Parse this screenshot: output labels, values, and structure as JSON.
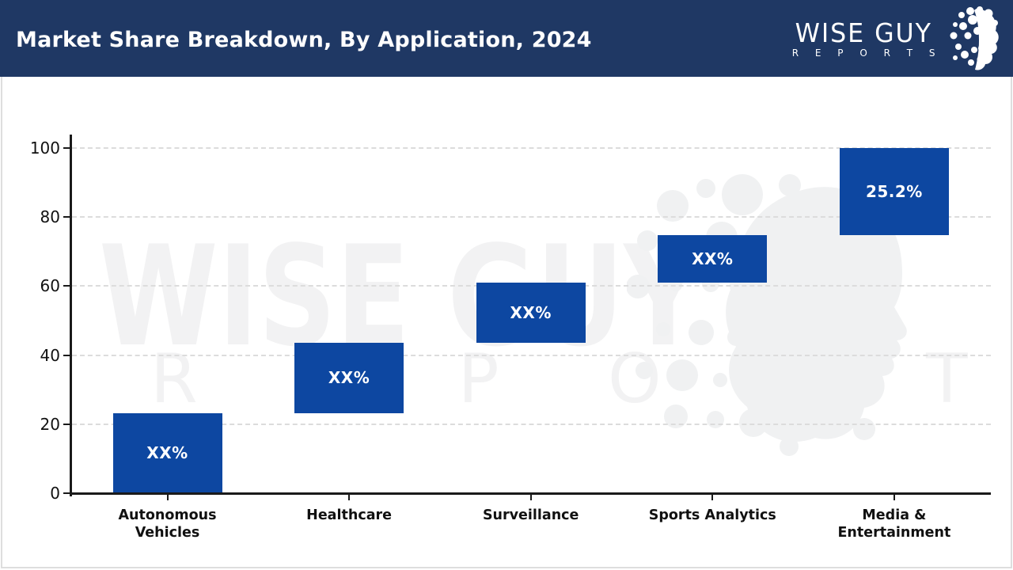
{
  "header": {
    "title": "Market Share Breakdown, By Application, 2024",
    "logo": {
      "brand": "WISE GUY",
      "tagline": "R E P O R T S"
    }
  },
  "watermark": {
    "brand": "WISE GUY",
    "tagline": "R E P O R T S"
  },
  "colors": {
    "header_bg": "#1f3864",
    "bar": "#0d47a1",
    "bar_label": "#ffffff",
    "grid": "#dcdcdc",
    "axis": "#1a1a1a",
    "watermark": "#f2f2f3",
    "title_text": "#ffffff"
  },
  "chart_data": {
    "type": "bar",
    "subtype": "waterfall",
    "title": "Market Share Breakdown, By Application, 2024",
    "xlabel": "",
    "ylabel": "",
    "ylim": [
      0,
      105
    ],
    "yticks": [
      0,
      20,
      40,
      60,
      80,
      100
    ],
    "grid": "dashed-horizontal",
    "legend": "none",
    "categories": [
      "Autonomous Vehicles",
      "Healthcare",
      "Surveillance",
      "Sports Analytics",
      "Media & Entertainment"
    ],
    "segments": [
      {
        "category": "Autonomous Vehicles",
        "label_lines": [
          "Autonomous",
          "Vehicles"
        ],
        "start": 0,
        "end": 23.2,
        "span_estimate": 23.2,
        "value_label": "XX%"
      },
      {
        "category": "Healthcare",
        "label_lines": [
          "Healthcare"
        ],
        "start": 23.2,
        "end": 43.6,
        "span_estimate": 20.4,
        "value_label": "XX%"
      },
      {
        "category": "Surveillance",
        "label_lines": [
          "Surveillance"
        ],
        "start": 43.6,
        "end": 61.0,
        "span_estimate": 17.4,
        "value_label": "XX%"
      },
      {
        "category": "Sports Analytics",
        "label_lines": [
          "Sports Analytics"
        ],
        "start": 61.0,
        "end": 74.8,
        "span_estimate": 13.8,
        "value_label": "XX%"
      },
      {
        "category": "Media & Entertainment",
        "label_lines": [
          "Media &",
          "Entertainment"
        ],
        "start": 74.8,
        "end": 100,
        "span_estimate": 25.2,
        "value_label": "25.2%"
      }
    ]
  }
}
